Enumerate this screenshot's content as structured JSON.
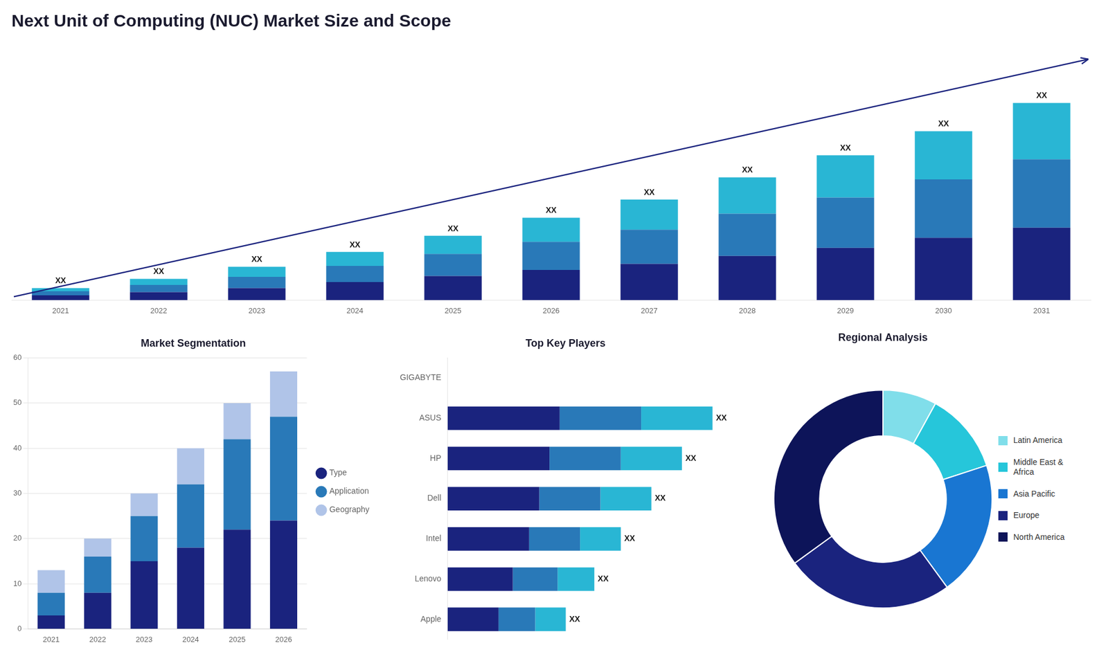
{
  "chart_data": [
    {
      "type": "bar",
      "title": "Next Unit of Computing (NUC) Market Size and Scope",
      "stacked": true,
      "categories": [
        "2021",
        "2022",
        "2023",
        "2024",
        "2025",
        "2026",
        "2027",
        "2028",
        "2029",
        "2030",
        "2031"
      ],
      "series": [
        {
          "color": "#1a237e",
          "values": [
            1.2,
            2.0,
            3.0,
            4.5,
            6.0,
            7.5,
            9.0,
            11.0,
            13.0,
            15.5,
            18.0
          ]
        },
        {
          "color": "#2979b8",
          "values": [
            1.0,
            1.8,
            2.8,
            4.0,
            5.5,
            7.0,
            8.5,
            10.5,
            12.5,
            14.5,
            17.0
          ]
        },
        {
          "color": "#29b6d4",
          "values": [
            0.8,
            1.5,
            2.5,
            3.5,
            4.5,
            6.0,
            7.5,
            9.0,
            10.5,
            12.0,
            14.0
          ]
        }
      ],
      "ylim": [
        0,
        63.7
      ],
      "annotations": [
        "XX",
        "XX",
        "XX",
        "XX",
        "XX",
        "XX",
        "XX",
        "XX",
        "XX",
        "XX",
        "XX"
      ],
      "tick_labels": "x",
      "grid": false
    },
    {
      "type": "bar",
      "title": "Market Segmentation",
      "stacked": true,
      "categories": [
        "2021",
        "2022",
        "2023",
        "2024",
        "2025",
        "2026"
      ],
      "series": [
        {
          "name": "Type",
          "color": "#1a237e",
          "values": [
            3,
            8,
            15,
            18,
            22,
            24
          ]
        },
        {
          "name": "Application",
          "color": "#2979b8",
          "values": [
            5,
            8,
            10,
            14,
            20,
            23
          ]
        },
        {
          "name": "Geography",
          "color": "#b0c4e8",
          "values": [
            5,
            4,
            5,
            8,
            8,
            10
          ]
        }
      ],
      "ylim": [
        0,
        60
      ],
      "yticks": [
        0,
        10,
        20,
        30,
        40,
        50,
        60
      ],
      "grid": true,
      "legend": "right"
    },
    {
      "type": "bar",
      "title": "Top Key Players",
      "orientation": "horizontal",
      "stacked": true,
      "categories": [
        "GIGABYTE",
        "ASUS",
        "HP",
        "Dell",
        "Intel",
        "Lenovo",
        "Apple"
      ],
      "series": [
        {
          "color": "#1a237e",
          "values": [
            0.0,
            5.5,
            5.0,
            4.5,
            4.0,
            3.2,
            2.5
          ]
        },
        {
          "color": "#2979b8",
          "values": [
            0.0,
            4.0,
            3.5,
            3.0,
            2.5,
            2.2,
            1.8
          ]
        },
        {
          "color": "#29b6d4",
          "values": [
            0.0,
            3.5,
            3.0,
            2.5,
            2.0,
            1.8,
            1.5
          ]
        }
      ],
      "xlim": [
        0,
        14
      ],
      "annotations": [
        null,
        "XX",
        "XX",
        "XX",
        "XX",
        "XX",
        "XX"
      ],
      "tick_labels": "y",
      "grid": false
    },
    {
      "type": "doughnut",
      "title": "Regional Analysis",
      "categories": [
        "Latin America",
        "Middle East &\nAfrica",
        "Asia Pacific",
        "Europe",
        "North America"
      ],
      "values": [
        8,
        12,
        20,
        25,
        35
      ],
      "colors": [
        "#80deea",
        "#26c6da",
        "#1976d2",
        "#1a237e",
        "#0d1459"
      ],
      "legend": "right"
    }
  ]
}
